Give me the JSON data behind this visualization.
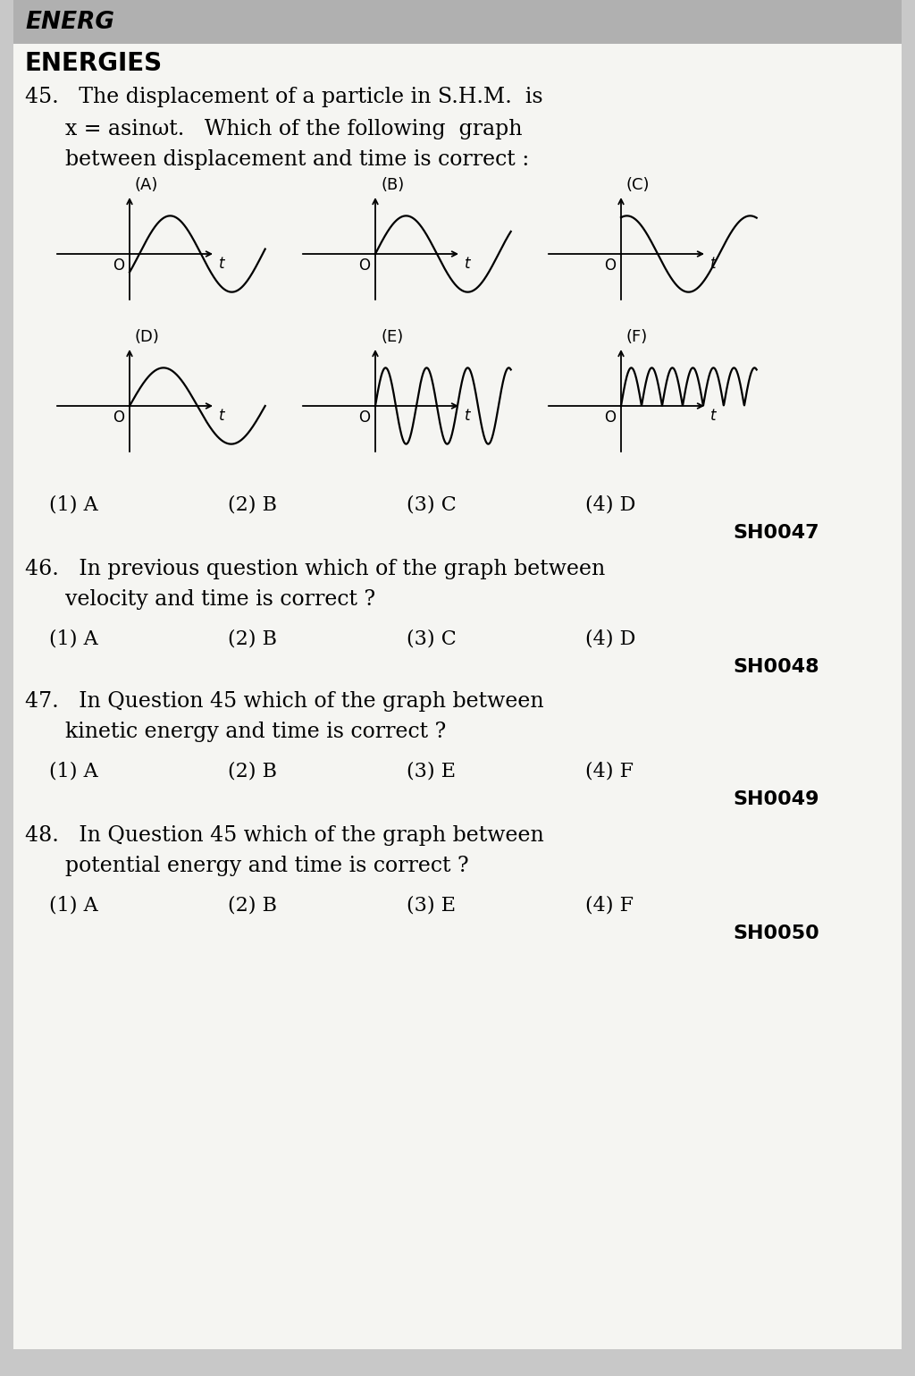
{
  "bg_color": "#c8c8c8",
  "page_bg": "#f5f5f2",
  "header_bar_color": "#b0b0b0",
  "q45_line1": "45.   The displacement of a particle in S.H.M.  is",
  "q45_line2": "      x = asinωt.   Which of the following  graph",
  "q45_line3": "      between displacement and time is correct :",
  "q46_line1": "46.   In previous question which of the graph between",
  "q46_line2": "      velocity and time is correct ?",
  "q47_line1": "47.   In Question 45 which of the graph between",
  "q47_line2": "      kinetic energy and time is correct ?",
  "q48_line1": "48.   In Question 45 which of the graph between",
  "q48_line2": "      potential energy and time is correct ?",
  "options_45": [
    "(1) A",
    "(2) B",
    "(3) C",
    "(4) D"
  ],
  "options_46": [
    "(1) A",
    "(2) B",
    "(3) C",
    "(4) D"
  ],
  "options_47": [
    "(1) A",
    "(2) B",
    "(3) E",
    "(4) F"
  ],
  "options_48": [
    "(1) A",
    "(2) B",
    "(3) E",
    "(4) F"
  ],
  "code_45": "SH0047",
  "code_46": "SH0048",
  "code_47": "SH0049",
  "code_48": "SH0050",
  "header_top": "ENERG",
  "header_main": "ENERGIES",
  "graph_row1_labels": [
    "(A)",
    "(B)",
    "(C)"
  ],
  "graph_row2_labels": [
    "(D)",
    "(E)",
    "(F)"
  ]
}
